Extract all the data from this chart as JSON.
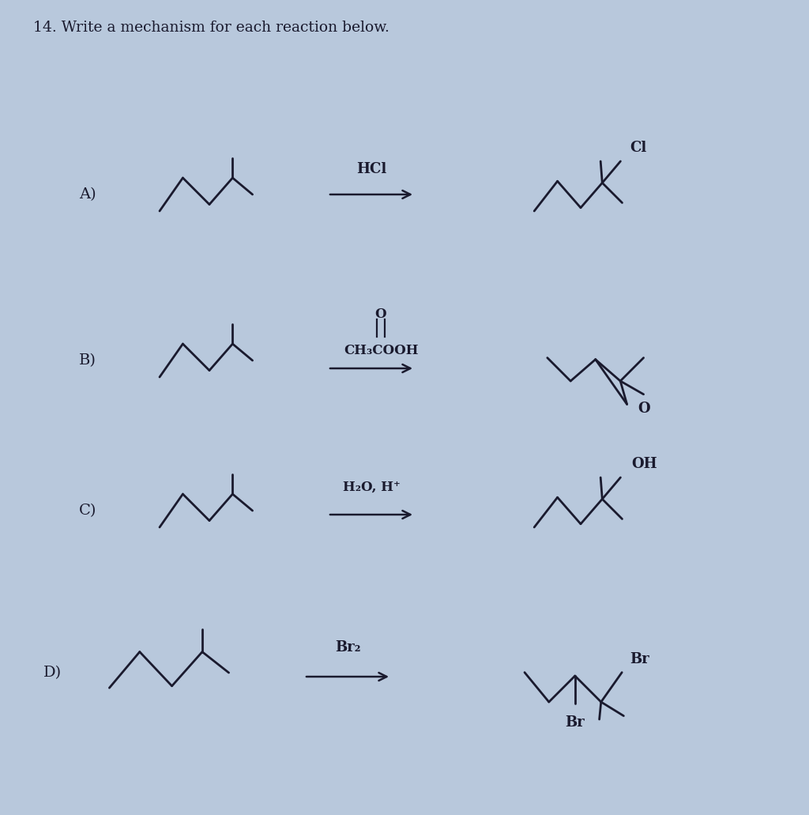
{
  "title": "14. Write a mechanism for each reaction below.",
  "background_color": "#b8c8dc",
  "text_color": "#1a1a2e",
  "line_color": "#1a1a2e",
  "line_width": 2.0,
  "rows": [
    {
      "label": "A)",
      "reagent_line1": "HCl",
      "reagent_line2": "",
      "yA": 7.85
    },
    {
      "label": "B)",
      "reagent_line1": "O",
      "reagent_line2": "CH₃COOH",
      "yA": 5.75
    },
    {
      "label": "C)",
      "reagent_line1": "H₂O, H⁺",
      "reagent_line2": "",
      "yA": 3.85
    },
    {
      "label": "D)",
      "reagent_line1": "Br₂",
      "reagent_line2": "",
      "yA": 1.8
    }
  ]
}
